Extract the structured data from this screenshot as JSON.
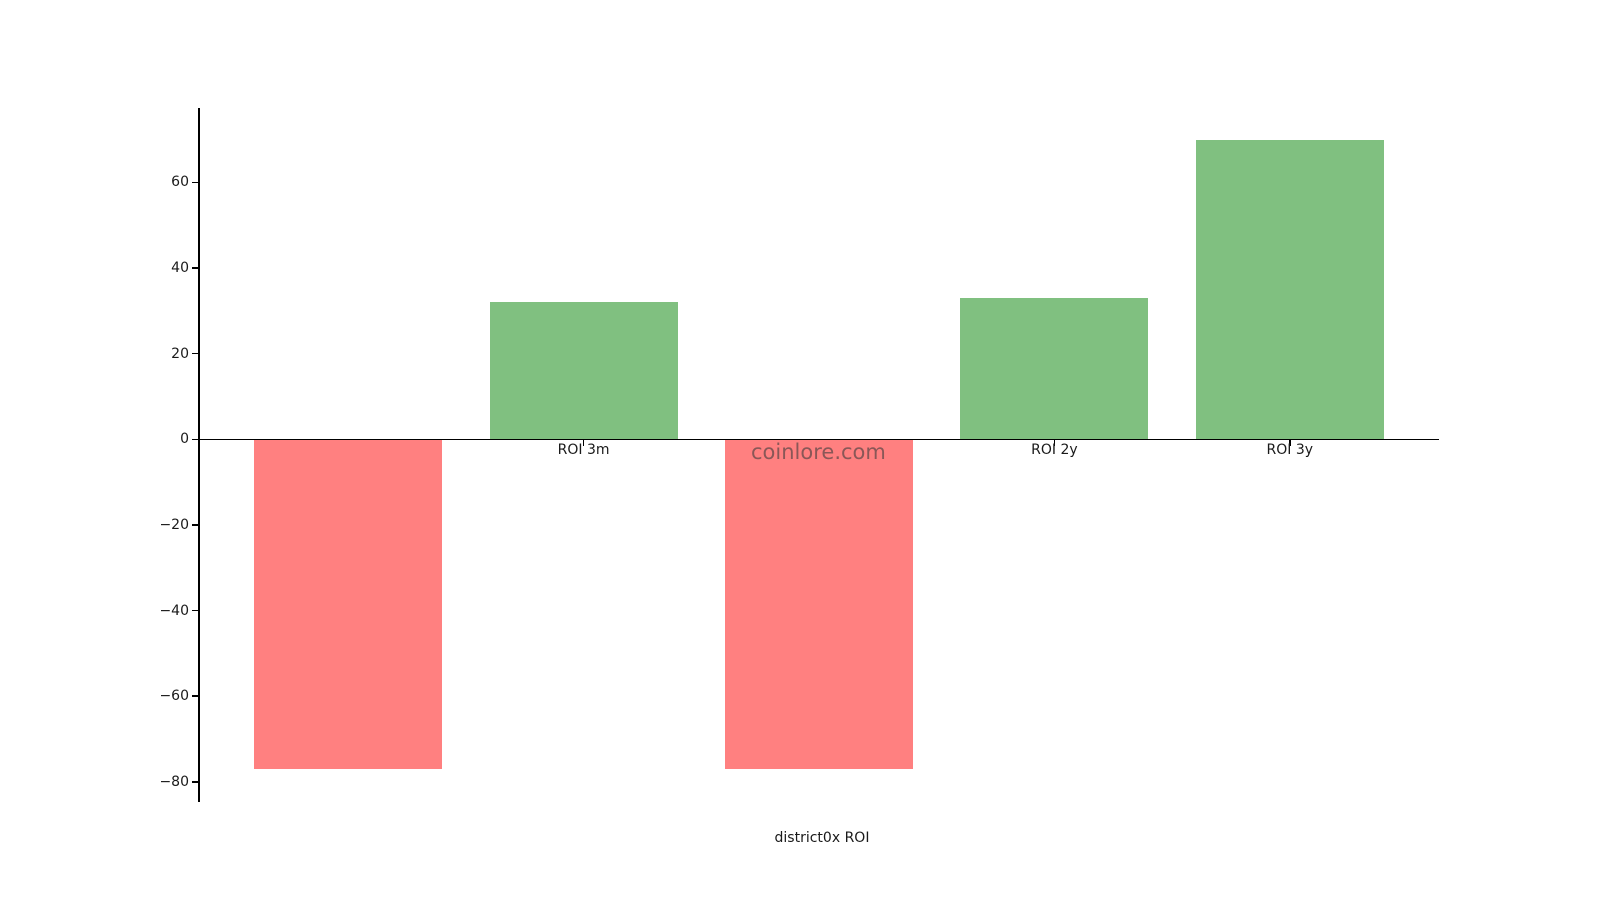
{
  "figure": {
    "background": "#ffffff"
  },
  "chart_data": {
    "type": "bar",
    "title": "district0x ROI",
    "categories": [
      "",
      "ROI 3m",
      "",
      "ROI 2y",
      "ROI 3y"
    ],
    "values": [
      -77,
      32,
      -77,
      33,
      70
    ],
    "series_note": "labels of the two negative bars are hidden behind the bars in the source image",
    "y_tick_labels": [
      "60",
      "40",
      "20",
      "0",
      "−20",
      "−40",
      "−60",
      "−80"
    ],
    "y_tick_values": [
      60,
      40,
      20,
      0,
      -20,
      -40,
      -60,
      -80
    ],
    "ylim": [
      -84.5,
      77.5
    ],
    "grid": false,
    "legend": false,
    "xlabel": "district0x ROI",
    "ylabel": "",
    "watermark": "coinlore.com",
    "colors": {
      "positive_bar": "#80C080",
      "negative_bar": "#FF8080",
      "axis": "#000000",
      "text": "#1a1a1a",
      "watermark": "rgba(60,60,60,0.6)"
    }
  }
}
